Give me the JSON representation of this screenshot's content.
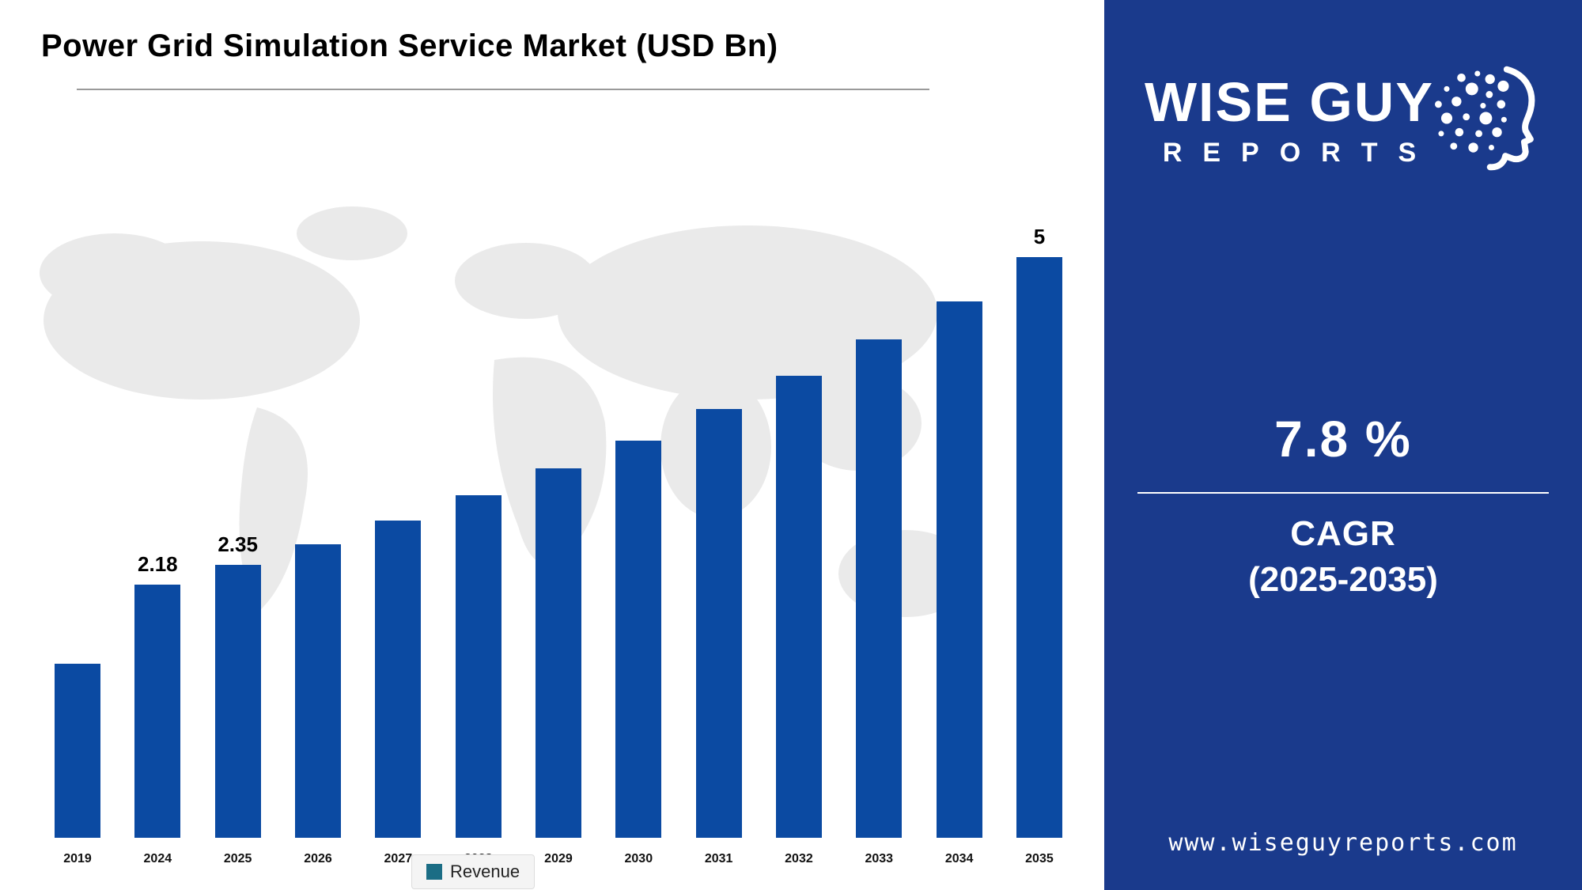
{
  "chart_data": {
    "type": "bar",
    "title": "Power Grid Simulation Service Market (USD Bn)",
    "categories": [
      "2019",
      "2024",
      "2025",
      "2026",
      "2027",
      "2028",
      "2029",
      "2030",
      "2031",
      "2032",
      "2033",
      "2034",
      "2035"
    ],
    "values": [
      1.5,
      2.18,
      2.35,
      2.53,
      2.73,
      2.95,
      3.18,
      3.42,
      3.69,
      3.98,
      4.29,
      4.62,
      5
    ],
    "value_labels": [
      "",
      "2.18",
      "2.35",
      "",
      "",
      "",
      "",
      "",
      "",
      "",
      "",
      "",
      "5"
    ],
    "ylim": [
      0,
      5
    ],
    "grid": false,
    "bar_color": "#0b4aa2",
    "legend_position": "bottom",
    "legend": [
      {
        "label": "Revenue",
        "color": "#1b6d85"
      }
    ]
  },
  "sidebar": {
    "background": "#1a3a8c",
    "logo": {
      "line1": "WISE GUY",
      "line2": "REPORTS"
    },
    "cagr_value": "7.8 %",
    "cagr_label": "CAGR",
    "cagr_range": "(2025-2035)",
    "website": "www.wiseguyreports.com"
  }
}
